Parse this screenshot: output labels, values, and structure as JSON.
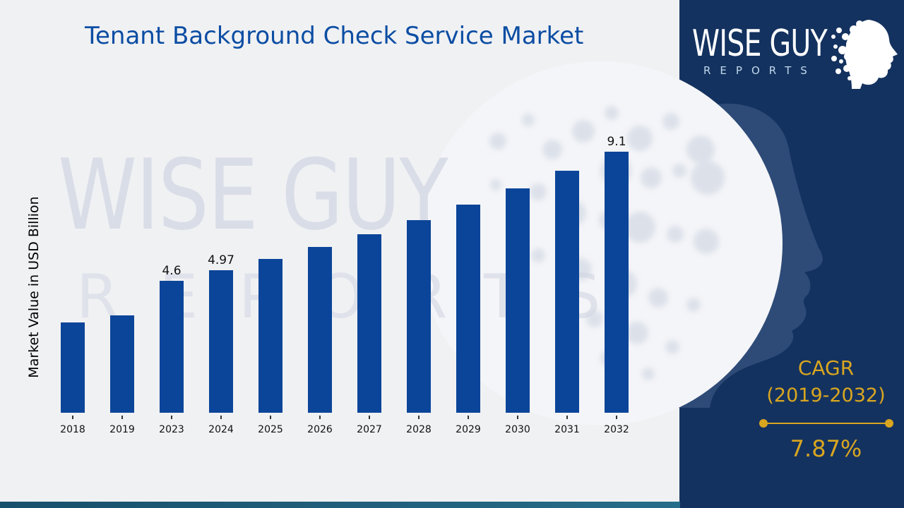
{
  "page": {
    "background": "#f0f1f3"
  },
  "header": {
    "title": "Tenant Background Check Service Market"
  },
  "watermark": {
    "line1": "WISE GUY",
    "line2": "REPORTS"
  },
  "chart_data": {
    "type": "bar",
    "title": "Tenant Background Check Service Market",
    "xlabel": "",
    "ylabel": "Market Value in USD Billion",
    "categories": [
      "2018",
      "2019",
      "2023",
      "2024",
      "2025",
      "2026",
      "2027",
      "2028",
      "2029",
      "2030",
      "2031",
      "2032"
    ],
    "values": [
      3.15,
      3.4,
      4.6,
      4.97,
      5.36,
      5.78,
      6.23,
      6.72,
      7.25,
      7.82,
      8.44,
      9.1
    ],
    "point_labels": [
      "",
      "",
      "4.6",
      "4.97",
      "",
      "",
      "",
      "",
      "",
      "",
      "",
      "9.1"
    ],
    "bar_color": "#0b4599",
    "value_label_color": "#111111",
    "ylim": [
      0,
      10
    ],
    "grid": false,
    "legend_position": "none"
  },
  "sidebar": {
    "background": "#14325f",
    "logo_line1": "WISE GUY",
    "logo_line2": "REPORTS",
    "cagr_label": "CAGR",
    "cagr_range": "(2019-2032)",
    "cagr_value": "7.87%",
    "accent_color": "#d9a620"
  }
}
